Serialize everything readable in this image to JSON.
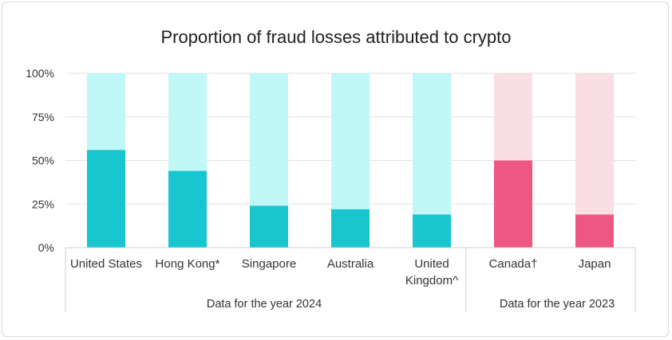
{
  "chart_data": {
    "type": "bar",
    "title": "Proportion of fraud losses attributed to crypto",
    "xlabel": "",
    "ylabel": "",
    "ylim": [
      0,
      100
    ],
    "yticks": [
      "0%",
      "25%",
      "50%",
      "75%",
      "100%"
    ],
    "grid": true,
    "stacked_to_total": 100,
    "categories": [
      [
        "United States"
      ],
      [
        "Hong Kong*"
      ],
      [
        "Singapore"
      ],
      [
        "Australia"
      ],
      [
        "United",
        "Kingdom^"
      ],
      [
        "Canada†"
      ],
      [
        "Japan"
      ]
    ],
    "values": [
      56,
      44,
      24,
      22,
      19,
      50,
      19
    ],
    "groups": [
      {
        "label": "Data for the year 2024",
        "count": 5,
        "color": "#17c6cf",
        "light_color": "#c0f8f8"
      },
      {
        "label": "Data for the year 2023",
        "count": 2,
        "color": "#ef5783",
        "light_color": "#f9dfe4"
      }
    ]
  }
}
